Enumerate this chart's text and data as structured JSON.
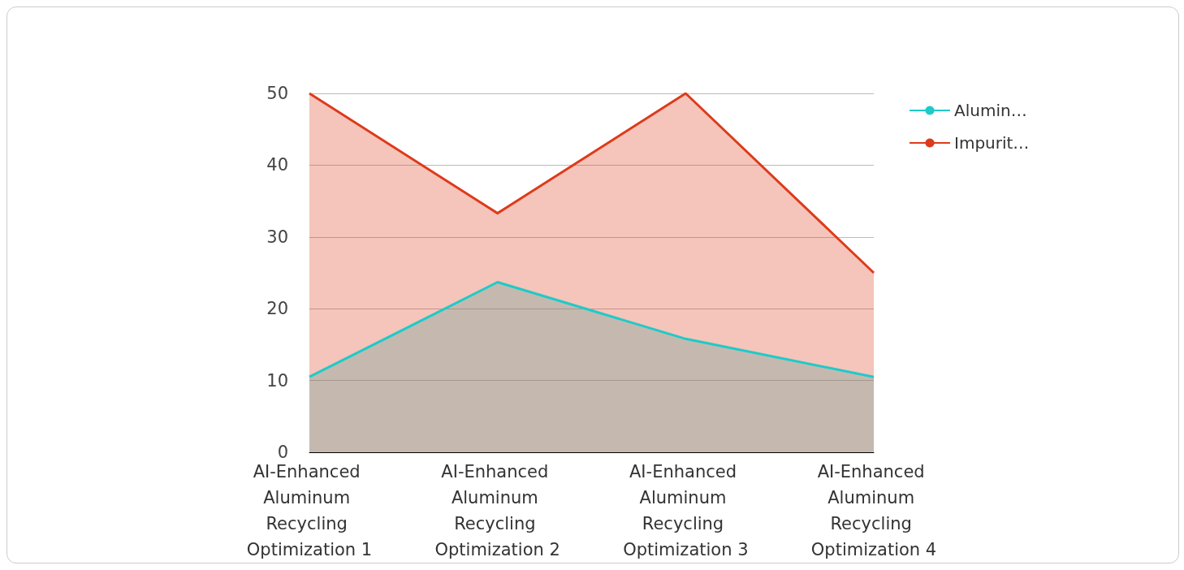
{
  "chart_data": {
    "type": "area",
    "categories": [
      "AI-Enhanced Aluminum Recycling Optimization 1",
      "AI-Enhanced Aluminum Recycling Optimization 2",
      "AI-Enhanced Aluminum Recycling Optimization 3",
      "AI-Enhanced Aluminum Recycling Optimization 4"
    ],
    "series": [
      {
        "name": "Alumin…",
        "color": "#1dcbc9",
        "values": [
          10.5,
          23.7,
          15.8,
          10.5
        ]
      },
      {
        "name": "Impurit…",
        "color": "#dd3b1a",
        "values": [
          50,
          33.3,
          50,
          25
        ]
      }
    ],
    "ylim": [
      0,
      50
    ],
    "yticks": [
      0,
      10,
      20,
      30,
      40,
      50
    ],
    "grid": true,
    "legend": "top right",
    "marker": "none"
  }
}
